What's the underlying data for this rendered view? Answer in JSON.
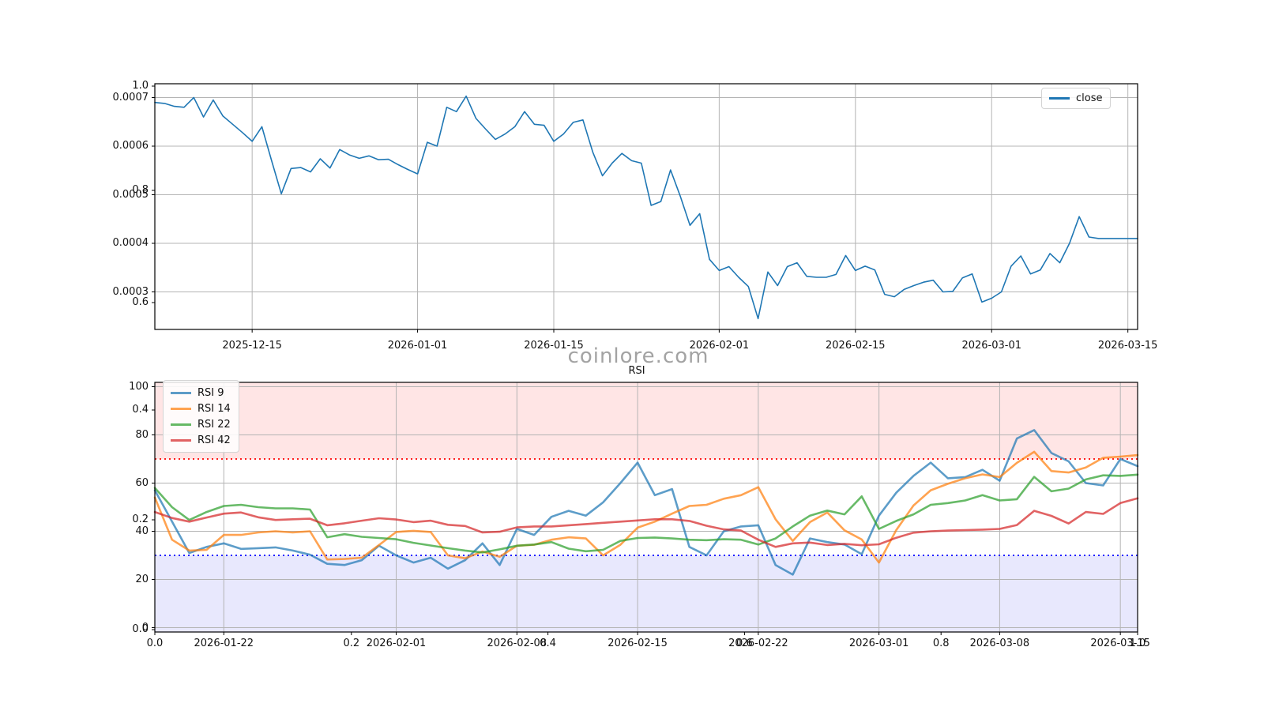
{
  "watermark": "coinlore.com",
  "colors": {
    "close_line": "#1f77b4",
    "rsi9": "#1f77b4",
    "rsi14": "#ff7f0e",
    "rsi22": "#2ca02c",
    "rsi42": "#d62728",
    "overbought_band": "rgba(255,0,0,0.10)",
    "oversold_band": "rgba(30,30,235,0.10)",
    "overbought_dotted_line": "#ff0000",
    "oversold_dotted_line": "#0000ff",
    "grid": "#b4b4b4",
    "spine": "#000000",
    "watermark_text": "#a3a3a3"
  },
  "chart_data": [
    {
      "id": "price",
      "type": "line",
      "title": "",
      "legend": [
        "close"
      ],
      "legend_position": "upper right",
      "grid": true,
      "ylim": [
        0.00024,
        0.00072
      ],
      "y_ticks": [
        0.0007,
        0.0006,
        0.0005,
        0.0004,
        0.0003
      ],
      "y_tick_labels": [
        "0.0007",
        "0.0006",
        "0.0005",
        "0.0004",
        "0.0003"
      ],
      "y2_tick_labels": [
        "1.0",
        "0.8",
        "0.6"
      ],
      "x_ticks": [
        "2025-12-15",
        "2026-01-01",
        "2026-01-15",
        "2026-02-01",
        "2026-02-15",
        "2026-03-01",
        "2026-03-15"
      ],
      "x": [
        "2025-12-05",
        "2025-12-06",
        "2025-12-07",
        "2025-12-08",
        "2025-12-09",
        "2025-12-10",
        "2025-12-11",
        "2025-12-12",
        "2025-12-13",
        "2025-12-14",
        "2025-12-15",
        "2025-12-16",
        "2025-12-17",
        "2025-12-18",
        "2025-12-19",
        "2025-12-20",
        "2025-12-21",
        "2025-12-22",
        "2025-12-23",
        "2025-12-24",
        "2025-12-25",
        "2025-12-26",
        "2025-12-27",
        "2025-12-28",
        "2025-12-29",
        "2025-12-30",
        "2025-12-31",
        "2026-01-01",
        "2026-01-02",
        "2026-01-03",
        "2026-01-04",
        "2026-01-05",
        "2026-01-06",
        "2026-01-07",
        "2026-01-08",
        "2026-01-09",
        "2026-01-10",
        "2026-01-11",
        "2026-01-12",
        "2026-01-13",
        "2026-01-14",
        "2026-01-15",
        "2026-01-16",
        "2026-01-17",
        "2026-01-18",
        "2026-01-19",
        "2026-01-20",
        "2026-01-21",
        "2026-01-22",
        "2026-01-23",
        "2026-01-24",
        "2026-01-25",
        "2026-01-26",
        "2026-01-27",
        "2026-01-28",
        "2026-01-29",
        "2026-01-30",
        "2026-01-31",
        "2026-02-01",
        "2026-02-02",
        "2026-02-03",
        "2026-02-04",
        "2026-02-05",
        "2026-02-06",
        "2026-02-07",
        "2026-02-08",
        "2026-02-09",
        "2026-02-10",
        "2026-02-11",
        "2026-02-12",
        "2026-02-13",
        "2026-02-14",
        "2026-02-15",
        "2026-02-16",
        "2026-02-17",
        "2026-02-18",
        "2026-02-19",
        "2026-02-20",
        "2026-02-21",
        "2026-02-22",
        "2026-02-23",
        "2026-02-24",
        "2026-02-25",
        "2026-02-26",
        "2026-02-27",
        "2026-02-28",
        "2026-03-01",
        "2026-03-02",
        "2026-03-03",
        "2026-03-04",
        "2026-03-05",
        "2026-03-06",
        "2026-03-07",
        "2026-03-08",
        "2026-03-09",
        "2026-03-10",
        "2026-03-11",
        "2026-03-12",
        "2026-03-13",
        "2026-03-14",
        "2026-03-15",
        "2026-03-16"
      ],
      "series": [
        {
          "name": "close",
          "color": "#1f77b4",
          "values": [
            0.00069,
            0.000688,
            0.000682,
            0.00068,
            0.0007,
            0.00066,
            0.000695,
            0.000662,
            0.000645,
            0.000628,
            0.00061,
            0.00064,
            0.00057,
            0.000502,
            0.000554,
            0.000556,
            0.000547,
            0.000574,
            0.000555,
            0.000593,
            0.000582,
            0.000575,
            0.00058,
            0.000572,
            0.000573,
            0.000562,
            0.000552,
            0.000543,
            0.000608,
            0.0006,
            0.00068,
            0.000671,
            0.000703,
            0.000657,
            0.000635,
            0.000614,
            0.000625,
            0.00064,
            0.000671,
            0.000645,
            0.000643,
            0.00061,
            0.000625,
            0.000649,
            0.000654,
            0.000588,
            0.000539,
            0.000565,
            0.000585,
            0.00057,
            0.000565,
            0.000478,
            0.000486,
            0.000551,
            0.000497,
            0.000437,
            0.000461,
            0.000367,
            0.000344,
            0.000352,
            0.00033,
            0.000311,
            0.000245,
            0.000341,
            0.000313,
            0.000352,
            0.00036,
            0.000332,
            0.00033,
            0.00033,
            0.000336,
            0.000375,
            0.000344,
            0.000353,
            0.000345,
            0.000295,
            0.00029,
            0.000305,
            0.000313,
            0.00032,
            0.000324,
            0.0003,
            0.000301,
            0.000329,
            0.000337,
            0.000279,
            0.000287,
            0.0003,
            0.000353,
            0.000374,
            0.000337,
            0.000345,
            0.000379,
            0.00036,
            0.0004,
            0.000455,
            0.000413,
            0.00041,
            0.00041,
            0.00041,
            0.00041,
            0.00041
          ]
        }
      ]
    },
    {
      "id": "rsi",
      "type": "line",
      "title": "RSI",
      "legend": [
        "RSI 9",
        "RSI 14",
        "RSI 22",
        "RSI 42"
      ],
      "legend_position": "upper left",
      "grid": true,
      "ylim": [
        0,
        100
      ],
      "y_ticks": [
        100,
        80,
        60,
        40,
        20,
        0
      ],
      "y_tick_labels": [
        "100",
        "80",
        "60",
        "40",
        "20",
        "0"
      ],
      "y2_tick_labels": [
        "0.4",
        "0.2",
        "0.0"
      ],
      "x2_tick_labels": [
        "0.0",
        "0.2",
        "0.4",
        "0.6",
        "0.8",
        "1.0"
      ],
      "overbought_level": 70,
      "oversold_level": 30,
      "x_ticks": [
        "2026-01-22",
        "2026-02-01",
        "2026-02-08",
        "2026-02-15",
        "2026-02-22",
        "2026-03-01",
        "2026-03-08",
        "2026-03-15"
      ],
      "x": [
        "2026-01-18",
        "2026-01-19",
        "2026-01-20",
        "2026-01-21",
        "2026-01-22",
        "2026-01-23",
        "2026-01-24",
        "2026-01-25",
        "2026-01-26",
        "2026-01-27",
        "2026-01-28",
        "2026-01-29",
        "2026-01-30",
        "2026-01-31",
        "2026-02-01",
        "2026-02-02",
        "2026-02-03",
        "2026-02-04",
        "2026-02-05",
        "2026-02-06",
        "2026-02-07",
        "2026-02-08",
        "2026-02-09",
        "2026-02-10",
        "2026-02-11",
        "2026-02-12",
        "2026-02-13",
        "2026-02-14",
        "2026-02-15",
        "2026-02-16",
        "2026-02-17",
        "2026-02-18",
        "2026-02-19",
        "2026-02-20",
        "2026-02-21",
        "2026-02-22",
        "2026-02-23",
        "2026-02-24",
        "2026-02-25",
        "2026-02-26",
        "2026-02-27",
        "2026-02-28",
        "2026-03-01",
        "2026-03-02",
        "2026-03-03",
        "2026-03-04",
        "2026-03-05",
        "2026-03-06",
        "2026-03-07",
        "2026-03-08",
        "2026-03-09",
        "2026-03-10",
        "2026-03-11",
        "2026-03-12",
        "2026-03-13",
        "2026-03-14",
        "2026-03-15",
        "2026-03-16"
      ],
      "series": [
        {
          "name": "RSI 9",
          "color": "#1f77b4",
          "values": [
            57,
            44,
            31,
            33.5,
            35,
            32.7,
            33,
            33.3,
            32,
            30.3,
            26.5,
            26,
            28,
            34,
            30,
            27,
            29,
            24.5,
            28,
            35,
            26,
            41,
            38.5,
            46,
            48.5,
            46.5,
            52,
            60,
            68.5,
            55,
            57.5,
            33.5,
            30,
            40,
            42,
            42.5,
            26,
            22,
            37,
            35.5,
            34.5,
            30.5,
            46.5,
            56,
            63,
            68.5,
            62,
            62.5,
            65.5,
            61,
            78.5,
            82,
            72.5,
            69,
            60,
            59,
            70,
            67
          ]
        },
        {
          "name": "RSI 14",
          "color": "#ff7f0e",
          "values": [
            54,
            36.5,
            32,
            32.3,
            38.5,
            38.5,
            39.5,
            40,
            39.5,
            40,
            28.3,
            28.5,
            29,
            34.3,
            39.7,
            40.2,
            39.7,
            30,
            28.8,
            31.6,
            29.4,
            34,
            34.4,
            36.5,
            37.5,
            37,
            30,
            34.4,
            41.5,
            44,
            47.3,
            50.5,
            51,
            53.5,
            55,
            58.3,
            45,
            36,
            43.8,
            47.8,
            40.4,
            36.6,
            27,
            40.5,
            50.7,
            57,
            59.7,
            62,
            63.6,
            62.5,
            68.4,
            73,
            65,
            64.4,
            66.5,
            70.5,
            71,
            71.6
          ]
        },
        {
          "name": "RSI 22",
          "color": "#2ca02c",
          "values": [
            58,
            50,
            44.7,
            48,
            50.5,
            51,
            50,
            49.5,
            49.5,
            49,
            37.5,
            38.8,
            37.7,
            37.2,
            36.7,
            35.2,
            34.1,
            33,
            32,
            31.2,
            32.5,
            34,
            34.5,
            35.5,
            32.8,
            31.7,
            32.3,
            36,
            37.2,
            37.4,
            37,
            36.5,
            36.3,
            36.7,
            36.5,
            34.5,
            37,
            42,
            46.5,
            48.6,
            47,
            54.5,
            41,
            44.3,
            47,
            51,
            51.7,
            52.8,
            55,
            52.8,
            53.3,
            62.6,
            56.6,
            57.7,
            61.5,
            63.2,
            63,
            63.5
          ]
        },
        {
          "name": "RSI 42",
          "color": "#d62728",
          "values": [
            48,
            45.5,
            44,
            45.7,
            47.3,
            47.8,
            45.8,
            44.7,
            45,
            45.2,
            42.5,
            43.3,
            44.4,
            45.4,
            44.9,
            43.8,
            44.4,
            42.7,
            42.2,
            39.5,
            39.8,
            41.6,
            42,
            42,
            42.5,
            43,
            43.5,
            44,
            44.5,
            45,
            45,
            44.3,
            42.3,
            40.8,
            40.3,
            36.5,
            33.5,
            35,
            35.3,
            34.3,
            34.8,
            34.2,
            34.6,
            37.3,
            39.4,
            40,
            40.3,
            40.5,
            40.7,
            41,
            42.6,
            48.5,
            46.4,
            43.2,
            48,
            47.2,
            51.7,
            53.7
          ]
        }
      ]
    }
  ]
}
